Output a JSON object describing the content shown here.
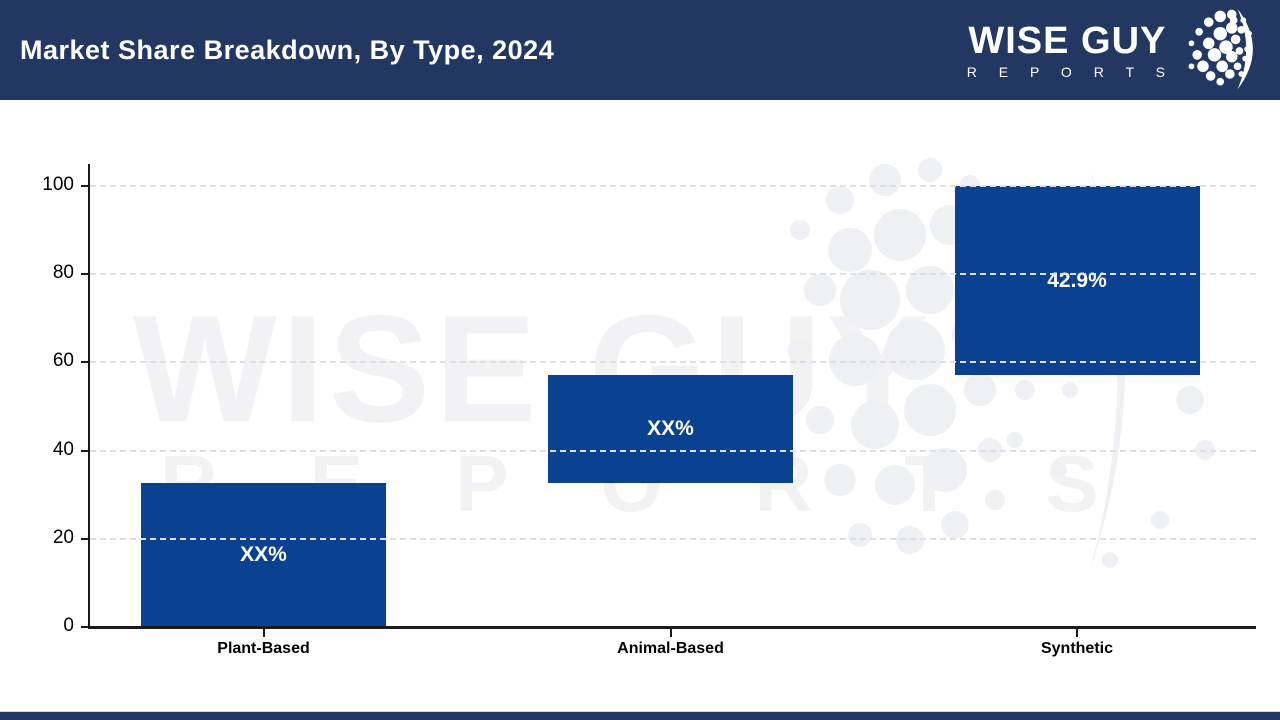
{
  "header": {
    "title": "Market Share Breakdown, By Type, 2024",
    "logo": {
      "primary": "WISE GUY",
      "secondary": "R E P O R T S"
    }
  },
  "watermark": {
    "primary": "WISE GUY",
    "secondary": "REPORTS"
  },
  "chart_data": {
    "type": "bar",
    "subtype": "waterfall",
    "title": "Market Share Breakdown, By Type, 2024",
    "categories": [
      "Plant-Based",
      "Animal-Based",
      "Synthetic"
    ],
    "segments": [
      {
        "category": "Plant-Based",
        "start": 0,
        "end": 32.7,
        "increment": 32.7,
        "value_label": "XX%"
      },
      {
        "category": "Animal-Based",
        "start": 32.7,
        "end": 57.1,
        "increment": 24.4,
        "value_label": "XX%"
      },
      {
        "category": "Synthetic",
        "start": 57.1,
        "end": 100,
        "increment": 42.9,
        "value_label": "42.9%"
      }
    ],
    "xlabel": "",
    "ylabel": "",
    "ylim": [
      0,
      105
    ],
    "yticks": [
      0,
      20,
      40,
      60,
      80,
      100
    ],
    "grid": "horizontal-dashed",
    "legend": "none",
    "colors": {
      "bar": "#0a4191",
      "bar_label": "#ffffff",
      "axis": "#1a1a1a",
      "gridline": "#e0e0e3",
      "header_bg": "#223862",
      "tick_label": "#000000",
      "watermark": "#f2f2f5"
    }
  }
}
